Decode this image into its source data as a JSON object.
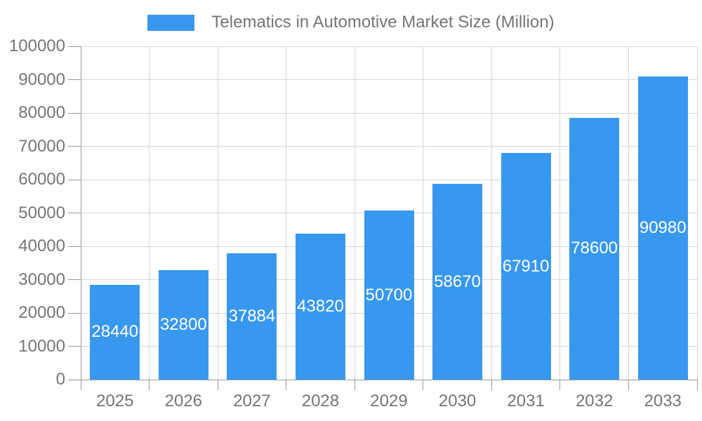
{
  "legend": {
    "label": "Telematics in Automotive Market Size (Million)",
    "swatch_color": "#3898F0"
  },
  "chart_data": {
    "type": "bar",
    "title": "Telematics in Automotive Market Size (Million)",
    "categories": [
      "2025",
      "2026",
      "2027",
      "2028",
      "2029",
      "2030",
      "2031",
      "2032",
      "2033"
    ],
    "values": [
      28440,
      32800,
      37884,
      43820,
      50700,
      58670,
      67910,
      78600,
      90980
    ],
    "xlabel": "",
    "ylabel": "",
    "ylim": [
      0,
      100000
    ],
    "ytick_step": 10000,
    "yticks": [
      0,
      10000,
      20000,
      30000,
      40000,
      50000,
      60000,
      70000,
      80000,
      90000,
      100000
    ],
    "grid": true,
    "legend_position": "top",
    "value_labels_shown": true,
    "value_label_position": "center-of-bar",
    "colors": {
      "bar": "#3898F0",
      "value_label": "#FFFFFF",
      "axis_text": "#757575",
      "title_text": "#757575",
      "gridline": "#D6D6D6",
      "axis_line": "#9A9A9A",
      "background": "#FFFFFF"
    }
  }
}
